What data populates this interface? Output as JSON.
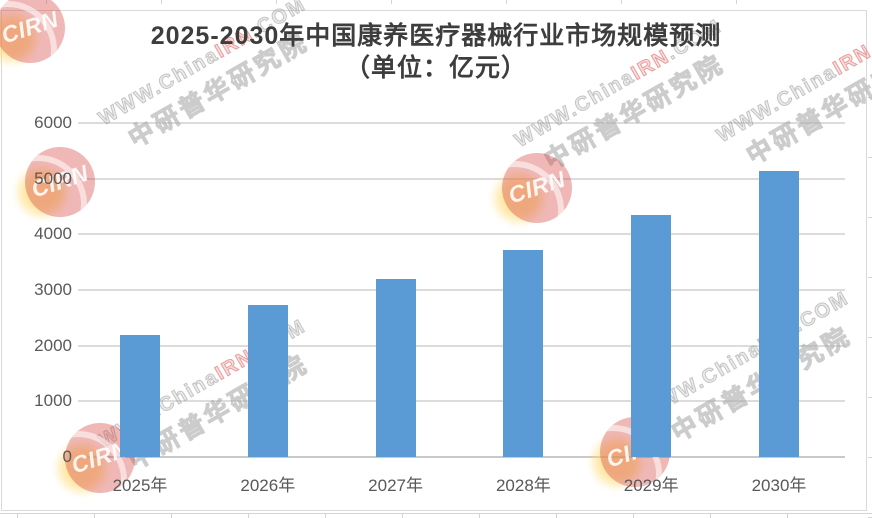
{
  "watermark": {
    "url_prefix": "WWW.China",
    "url_highlight": "IRN",
    "url_suffix": ".COM",
    "company": "中研普华研究院",
    "logo_text": "CIRN",
    "text_color": "#949494",
    "highlight_color": "#dd6868",
    "logo_red": "#d64541",
    "logo_glow": "#ffd666"
  },
  "chart_data": {
    "type": "bar",
    "title": "2025-2030年中国康养医疗器械行业市场规模预测",
    "subtitle": "（单位：亿元）",
    "unit": "亿元",
    "categories": [
      "2025年",
      "2026年",
      "2027年",
      "2028年",
      "2029年",
      "2030年"
    ],
    "values": [
      2200,
      2730,
      3200,
      3720,
      4340,
      5140
    ],
    "ylim": [
      0,
      6000
    ],
    "yticks": [
      0,
      1000,
      2000,
      3000,
      4000,
      5000,
      6000
    ],
    "xlabel": "",
    "ylabel": "",
    "legend": "none",
    "grid": true,
    "bar_color": "#5b9bd5",
    "gridline_color": "#dcdcdc",
    "axis_line_color": "#c9c9c9",
    "axis_text_color": "#595959",
    "title_color": "#3d3d3d",
    "background_color": "#ffffff",
    "frame_color": "#d9d9d9"
  }
}
